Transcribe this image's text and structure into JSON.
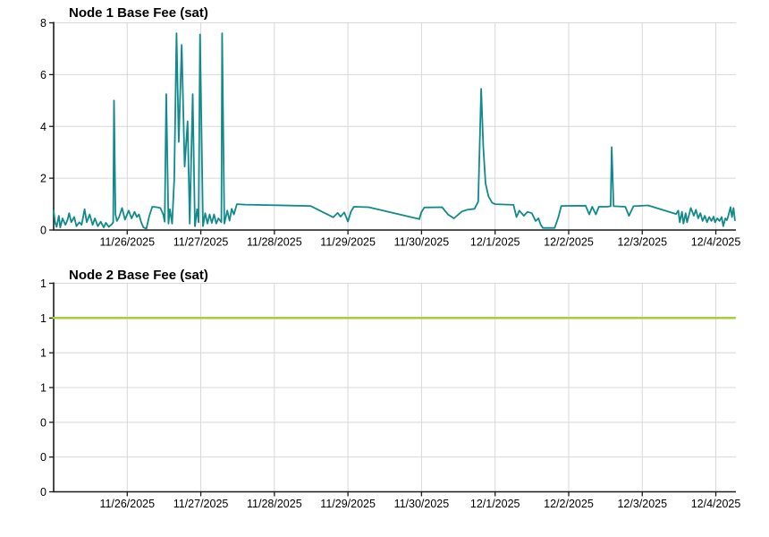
{
  "colors": {
    "background": "#ffffff",
    "grid": "#d8d8d8",
    "axis": "#1a1a1a",
    "node1_line": "#108a8a",
    "node2_line": "#a3cf3b"
  },
  "chart_data": [
    {
      "type": "line",
      "title": "Node 1 Base Fee (sat)",
      "series_name": "node1-base-fee",
      "line_color": "#108a8a",
      "line_width": 1.8,
      "grid": true,
      "legend": "none",
      "xlabel": "",
      "ylabel": "",
      "x": {
        "range": [
          0,
          9.273
        ],
        "unit": "days-from-11/25/2025",
        "ticks": [
          {
            "t": 1,
            "label": "11/26/2025"
          },
          {
            "t": 2,
            "label": "11/27/2025"
          },
          {
            "t": 3,
            "label": "11/28/2025"
          },
          {
            "t": 4,
            "label": "11/29/2025"
          },
          {
            "t": 5,
            "label": "11/30/2025"
          },
          {
            "t": 6,
            "label": "12/1/2025"
          },
          {
            "t": 7,
            "label": "12/2/2025"
          },
          {
            "t": 8,
            "label": "12/3/2025"
          },
          {
            "t": 9,
            "label": "12/4/2025"
          }
        ]
      },
      "y": {
        "range": [
          0,
          8
        ],
        "ticks": [
          {
            "v": 0,
            "label": "0"
          },
          {
            "v": 2,
            "label": "2"
          },
          {
            "v": 4,
            "label": "4"
          },
          {
            "v": 6,
            "label": "6"
          },
          {
            "v": 8,
            "label": "8"
          }
        ]
      },
      "points": [
        [
          0.0,
          0.75
        ],
        [
          0.02,
          0.3
        ],
        [
          0.04,
          0.12
        ],
        [
          0.07,
          0.55
        ],
        [
          0.09,
          0.1
        ],
        [
          0.12,
          0.45
        ],
        [
          0.16,
          0.2
        ],
        [
          0.19,
          0.4
        ],
        [
          0.21,
          0.65
        ],
        [
          0.24,
          0.3
        ],
        [
          0.28,
          0.5
        ],
        [
          0.31,
          0.15
        ],
        [
          0.35,
          0.3
        ],
        [
          0.38,
          0.2
        ],
        [
          0.42,
          0.8
        ],
        [
          0.45,
          0.3
        ],
        [
          0.49,
          0.6
        ],
        [
          0.53,
          0.2
        ],
        [
          0.56,
          0.45
        ],
        [
          0.6,
          0.15
        ],
        [
          0.64,
          0.32
        ],
        [
          0.68,
          0.1
        ],
        [
          0.71,
          0.28
        ],
        [
          0.75,
          0.12
        ],
        [
          0.79,
          0.22
        ],
        [
          0.81,
          0.3
        ],
        [
          0.82,
          5.0
        ],
        [
          0.84,
          0.6
        ],
        [
          0.86,
          0.35
        ],
        [
          0.89,
          0.5
        ],
        [
          0.93,
          0.85
        ],
        [
          0.97,
          0.4
        ],
        [
          1.02,
          0.75
        ],
        [
          1.06,
          0.45
        ],
        [
          1.1,
          0.7
        ],
        [
          1.13,
          0.5
        ],
        [
          1.16,
          0.6
        ],
        [
          1.19,
          0.3
        ],
        [
          1.22,
          0.1
        ],
        [
          1.26,
          0.05
        ],
        [
          1.3,
          0.55
        ],
        [
          1.34,
          0.9
        ],
        [
          1.4,
          0.88
        ],
        [
          1.45,
          0.85
        ],
        [
          1.49,
          0.6
        ],
        [
          1.51,
          0.32
        ],
        [
          1.53,
          5.25
        ],
        [
          1.56,
          0.25
        ],
        [
          1.58,
          0.8
        ],
        [
          1.61,
          0.25
        ],
        [
          1.64,
          2.0
        ],
        [
          1.67,
          7.6
        ],
        [
          1.7,
          3.4
        ],
        [
          1.74,
          7.15
        ],
        [
          1.78,
          2.45
        ],
        [
          1.82,
          4.2
        ],
        [
          1.85,
          0.25
        ],
        [
          1.89,
          5.25
        ],
        [
          1.92,
          0.15
        ],
        [
          1.95,
          0.8
        ],
        [
          1.97,
          0.3
        ],
        [
          1.99,
          7.55
        ],
        [
          2.03,
          0.15
        ],
        [
          2.06,
          0.65
        ],
        [
          2.09,
          0.25
        ],
        [
          2.12,
          0.6
        ],
        [
          2.15,
          0.27
        ],
        [
          2.18,
          0.6
        ],
        [
          2.21,
          0.25
        ],
        [
          2.24,
          0.45
        ],
        [
          2.28,
          0.3
        ],
        [
          2.29,
          7.6
        ],
        [
          2.32,
          0.25
        ],
        [
          2.36,
          0.75
        ],
        [
          2.39,
          0.36
        ],
        [
          2.42,
          0.82
        ],
        [
          2.45,
          0.6
        ],
        [
          2.49,
          1.0
        ],
        [
          2.6,
          0.98
        ],
        [
          3.3,
          0.94
        ],
        [
          3.49,
          0.93
        ],
        [
          3.8,
          0.49
        ],
        [
          3.86,
          0.66
        ],
        [
          3.9,
          0.52
        ],
        [
          3.95,
          0.68
        ],
        [
          4.0,
          0.33
        ],
        [
          4.04,
          0.7
        ],
        [
          4.08,
          0.9
        ],
        [
          4.28,
          0.88
        ],
        [
          4.97,
          0.42
        ],
        [
          5.0,
          0.7
        ],
        [
          5.04,
          0.87
        ],
        [
          5.28,
          0.88
        ],
        [
          5.36,
          0.6
        ],
        [
          5.44,
          0.45
        ],
        [
          5.55,
          0.72
        ],
        [
          5.62,
          0.78
        ],
        [
          5.72,
          0.82
        ],
        [
          5.77,
          1.1
        ],
        [
          5.81,
          5.45
        ],
        [
          5.84,
          3.2
        ],
        [
          5.87,
          1.8
        ],
        [
          5.91,
          1.3
        ],
        [
          5.96,
          1.05
        ],
        [
          6.0,
          1.0
        ],
        [
          6.25,
          0.97
        ],
        [
          6.29,
          0.5
        ],
        [
          6.33,
          0.75
        ],
        [
          6.39,
          0.55
        ],
        [
          6.44,
          0.7
        ],
        [
          6.5,
          0.65
        ],
        [
          6.55,
          0.35
        ],
        [
          6.59,
          0.45
        ],
        [
          6.62,
          0.2
        ],
        [
          6.65,
          0.08
        ],
        [
          6.81,
          0.08
        ],
        [
          6.86,
          0.5
        ],
        [
          6.9,
          0.93
        ],
        [
          7.23,
          0.94
        ],
        [
          7.28,
          0.6
        ],
        [
          7.32,
          0.9
        ],
        [
          7.37,
          0.6
        ],
        [
          7.41,
          0.9
        ],
        [
          7.52,
          0.9
        ],
        [
          7.57,
          0.92
        ],
        [
          7.585,
          3.2
        ],
        [
          7.61,
          0.92
        ],
        [
          7.77,
          0.9
        ],
        [
          7.82,
          0.55
        ],
        [
          7.88,
          0.92
        ],
        [
          8.08,
          0.95
        ],
        [
          8.46,
          0.62
        ],
        [
          8.49,
          0.75
        ],
        [
          8.51,
          0.3
        ],
        [
          8.54,
          0.7
        ],
        [
          8.56,
          0.25
        ],
        [
          8.59,
          0.65
        ],
        [
          8.61,
          0.3
        ],
        [
          8.66,
          0.85
        ],
        [
          8.7,
          0.55
        ],
        [
          8.73,
          0.78
        ],
        [
          8.76,
          0.45
        ],
        [
          8.79,
          0.65
        ],
        [
          8.82,
          0.35
        ],
        [
          8.85,
          0.55
        ],
        [
          8.88,
          0.3
        ],
        [
          8.91,
          0.5
        ],
        [
          8.94,
          0.35
        ],
        [
          8.97,
          0.52
        ],
        [
          8.99,
          0.3
        ],
        [
          9.02,
          0.45
        ],
        [
          9.05,
          0.35
        ],
        [
          9.08,
          0.5
        ],
        [
          9.1,
          0.15
        ],
        [
          9.13,
          0.45
        ],
        [
          9.15,
          0.38
        ],
        [
          9.17,
          0.55
        ],
        [
          9.2,
          0.88
        ],
        [
          9.22,
          0.5
        ],
        [
          9.24,
          0.85
        ],
        [
          9.26,
          0.38
        ]
      ]
    },
    {
      "type": "line",
      "title": "Node 2 Base Fee (sat)",
      "series_name": "node2-base-fee",
      "line_color": "#a3cf3b",
      "line_width": 2.5,
      "grid": true,
      "legend": "none",
      "xlabel": "",
      "ylabel": "",
      "x": {
        "range": [
          0,
          9.273
        ],
        "unit": "days-from-11/25/2025",
        "ticks": [
          {
            "t": 1,
            "label": "11/26/2025"
          },
          {
            "t": 2,
            "label": "11/27/2025"
          },
          {
            "t": 3,
            "label": "11/28/2025"
          },
          {
            "t": 4,
            "label": "11/29/2025"
          },
          {
            "t": 5,
            "label": "11/30/2025"
          },
          {
            "t": 6,
            "label": "12/1/2025"
          },
          {
            "t": 7,
            "label": "12/2/2025"
          },
          {
            "t": 8,
            "label": "12/3/2025"
          },
          {
            "t": 9,
            "label": "12/4/2025"
          }
        ]
      },
      "y": {
        "range": [
          0,
          1.2
        ],
        "ticks": [
          {
            "v": 0.0,
            "label": "0"
          },
          {
            "v": 0.2,
            "label": "0"
          },
          {
            "v": 0.4,
            "label": "0"
          },
          {
            "v": 0.6,
            "label": "1"
          },
          {
            "v": 0.8,
            "label": "1"
          },
          {
            "v": 1.0,
            "label": "1"
          },
          {
            "v": 1.2,
            "label": "1"
          }
        ]
      },
      "points": [
        [
          0.0,
          1.0
        ],
        [
          9.26,
          1.0
        ]
      ]
    }
  ]
}
